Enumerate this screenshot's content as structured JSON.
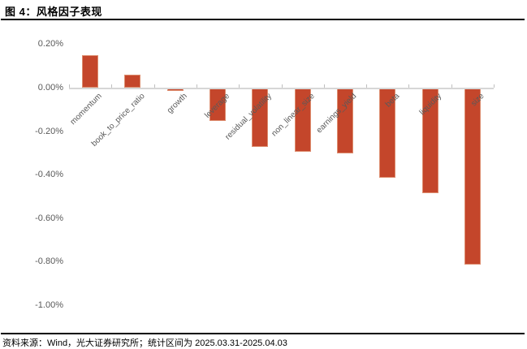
{
  "header": {
    "title": "图 4：风格因子表现"
  },
  "footer": {
    "source": "资料来源：Wind，光大证券研究所；统计区间为 2025.03.31-2025.04.03"
  },
  "chart_data": {
    "type": "bar",
    "title": "风格因子表现",
    "categories": [
      "momentum",
      "book_to_price_ratio",
      "growth",
      "leverage",
      "residual_volatility",
      "non_linear_size",
      "earnings_yield",
      "beta",
      "liquidity",
      "size"
    ],
    "values": [
      0.15,
      0.06,
      -0.01,
      -0.15,
      -0.27,
      -0.29,
      -0.3,
      -0.41,
      -0.48,
      -0.81
    ],
    "unit": "%",
    "xlabel": "",
    "ylabel": "",
    "y_ticks": [
      {
        "label": "0.20%",
        "value": 0.2
      },
      {
        "label": "0.00%",
        "value": 0.0
      },
      {
        "label": "-0.20%",
        "value": -0.2
      },
      {
        "label": "-0.40%",
        "value": -0.4
      },
      {
        "label": "-0.60%",
        "value": -0.6
      },
      {
        "label": "-0.80%",
        "value": -0.8
      },
      {
        "label": "-1.00%",
        "value": -1.0
      }
    ],
    "ylim": [
      -1.0,
      0.2
    ],
    "grid": false,
    "legend": null,
    "colors": {
      "bar_fill": "#c4462b",
      "bar_edge": "#dd8d6f",
      "axis_line": "#d6d6d6",
      "tick_mark": "#bfbfbf",
      "tick_label": "#595959"
    }
  }
}
